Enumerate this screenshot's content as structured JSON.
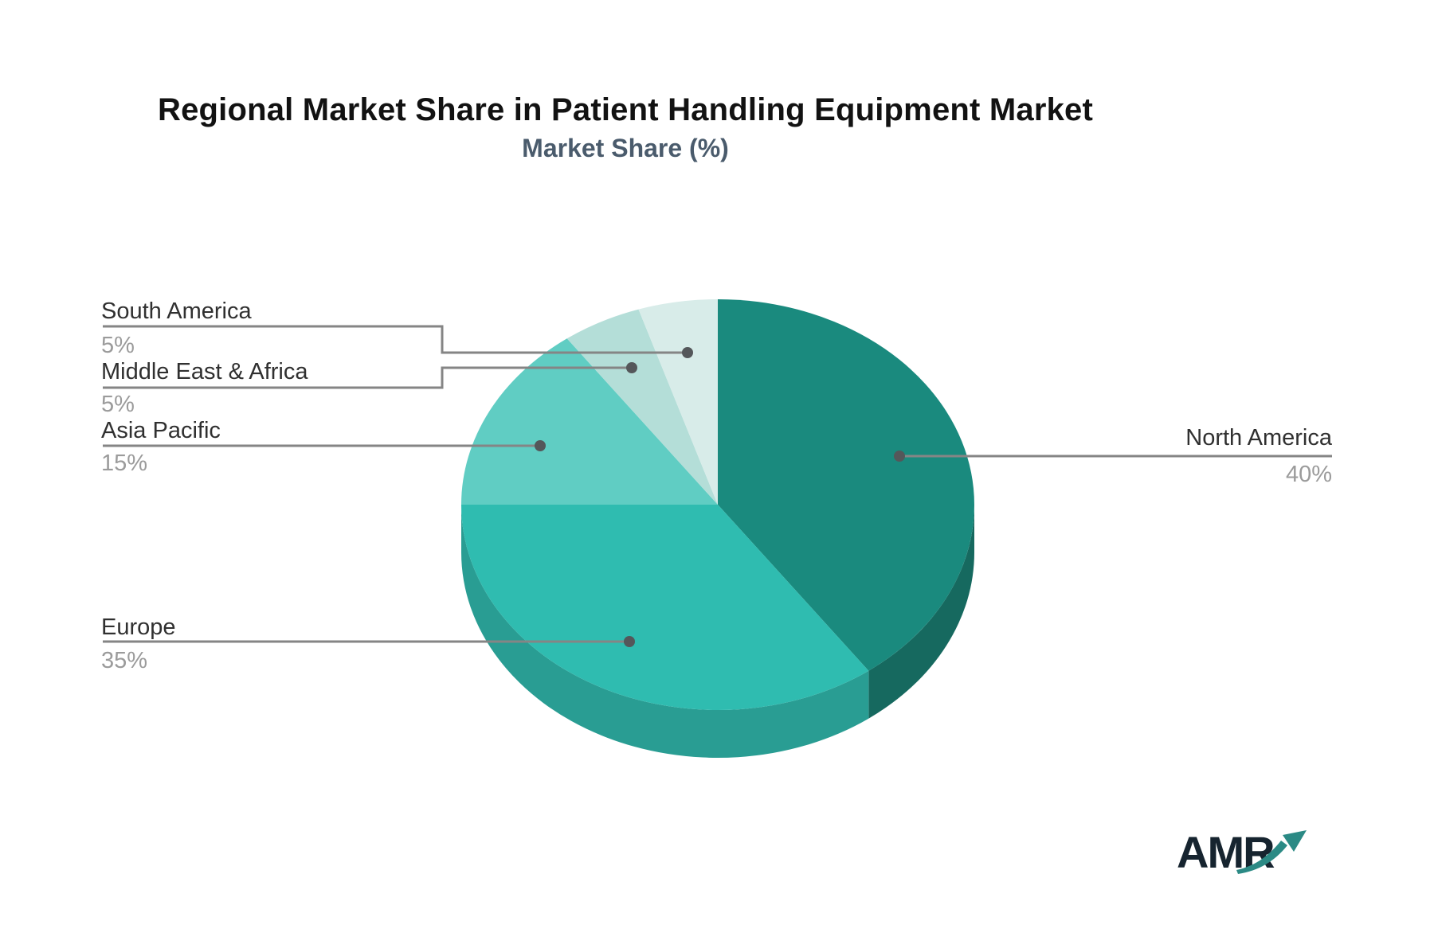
{
  "title": "Regional Market Share in Patient Handling Equipment Market",
  "subtitle": "Market Share (%)",
  "chart_data": {
    "type": "pie",
    "style": "3d",
    "title": "Regional Market Share in Patient Handling Equipment Market",
    "subtitle": "Market Share (%)",
    "unit": "%",
    "start_angle_deg": 0,
    "direction": "clockwise",
    "legend_position": "callout-labels",
    "categories": [
      "North America",
      "Europe",
      "Asia Pacific",
      "Middle East & Africa",
      "South America"
    ],
    "values": [
      40,
      35,
      15,
      5,
      5
    ],
    "labels": [
      "40%",
      "35%",
      "15%",
      "5%",
      "5%"
    ],
    "colors": [
      "#1a8a7e",
      "#2fbcb0",
      "#60cdc3",
      "#b4ded8",
      "#d8ece9"
    ],
    "side_colors": [
      "#16695f",
      "#299d93",
      null,
      null,
      null
    ],
    "leader_line_color": "#858585",
    "leader_dot_color": "#54575a"
  },
  "logo": {
    "text": "AMR",
    "arrow_color": "#2b8a85"
  }
}
